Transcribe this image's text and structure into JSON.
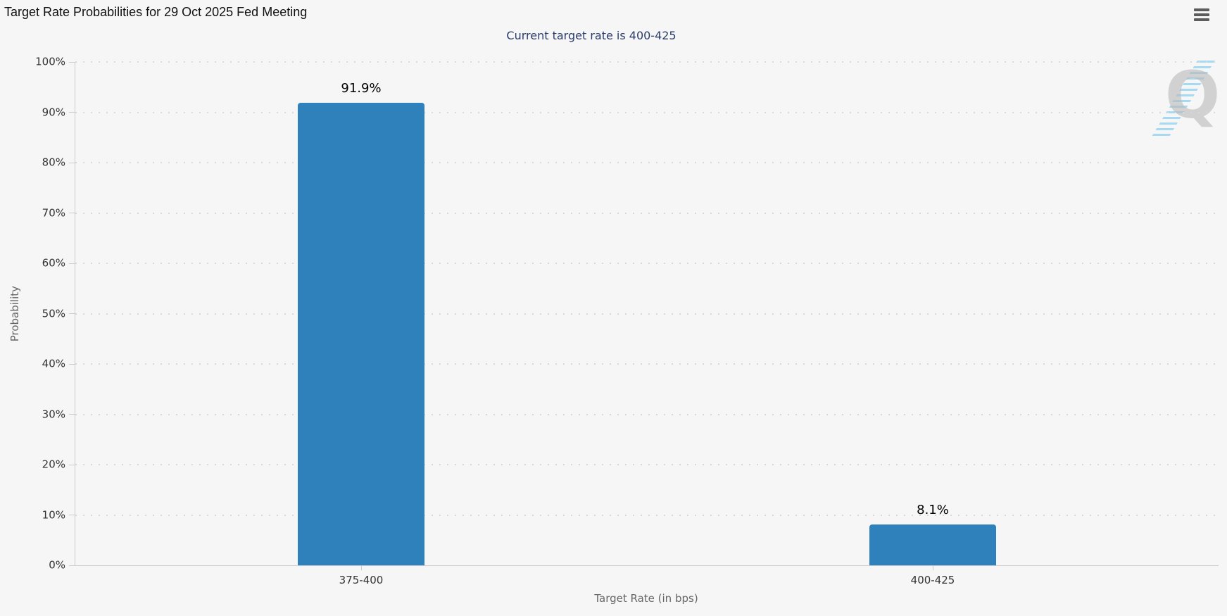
{
  "header": {
    "title": "Target Rate Probabilities for 29 Oct 2025 Fed Meeting",
    "menu_icon": "hamburger-menu"
  },
  "subtitle": "Current target rate is 400-425",
  "watermark": {
    "letter": "Q"
  },
  "colors": {
    "background": "#f6f6f6",
    "bar": "#2e81ba",
    "subtitle": "#2b3c69",
    "grid_dot": "#d8d8d8",
    "axis_line": "#cccccc",
    "axis_title": "#666666",
    "tick_label": "#333333"
  },
  "chart_data": {
    "type": "bar",
    "title": "Target Rate Probabilities for 29 Oct 2025 Fed Meeting",
    "subtitle": "Current target rate is 400-425",
    "categories": [
      "375-400",
      "400-425"
    ],
    "values": [
      91.9,
      8.1
    ],
    "data_labels": [
      "91.9%",
      "8.1%"
    ],
    "xlabel": "Target Rate (in bps)",
    "ylabel": "Probability",
    "ylim": [
      0,
      100
    ],
    "ytick_step": 10,
    "ytick_suffix": "%",
    "grid": "dotted-horizontal",
    "legend": "none"
  }
}
